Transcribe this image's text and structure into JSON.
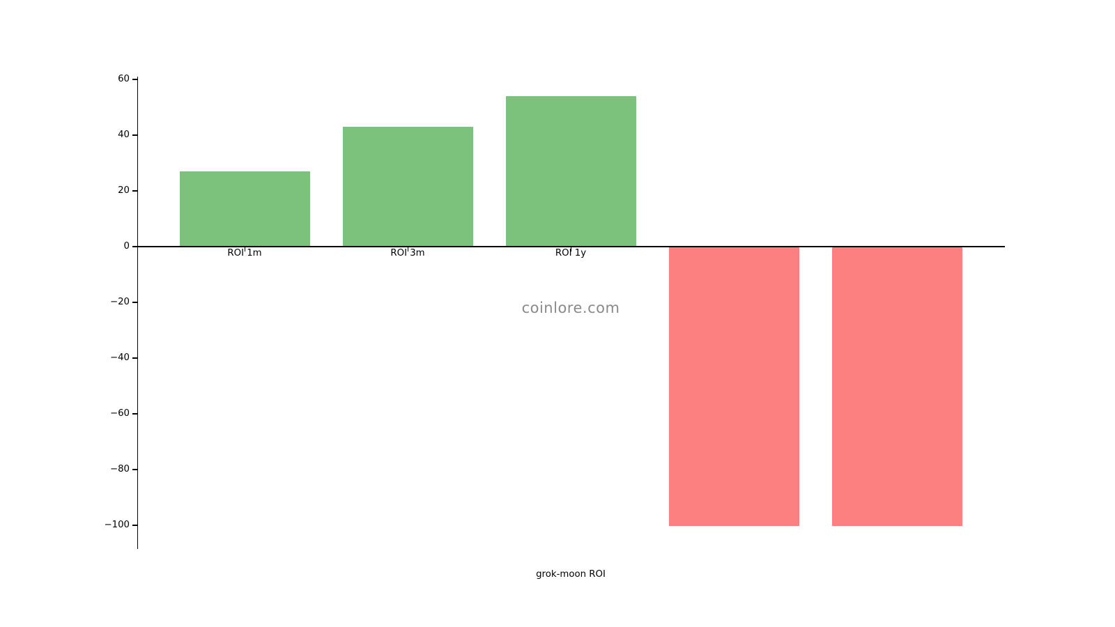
{
  "chart_data": {
    "type": "bar",
    "title": "",
    "xlabel": "grok-moon ROI",
    "ylabel": "",
    "categories": [
      "ROI 1m",
      "ROI 3m",
      "ROI 1y",
      "",
      ""
    ],
    "values": [
      27,
      43,
      54,
      -100,
      -100
    ],
    "yticks": [
      60,
      40,
      20,
      0,
      -20,
      -40,
      -60,
      -80,
      -100
    ],
    "ytick_labels": [
      "60",
      "40",
      "20",
      "0",
      "−20",
      "−40",
      "−60",
      "−80",
      "−100"
    ],
    "ylim": [
      -108,
      60.5
    ],
    "grid": false,
    "legend_position": "none",
    "positive_color": "#7CC27C",
    "negative_color": "#FC8080",
    "axis_color": "#000000",
    "watermark_color": "#8a8a8a",
    "annotations": [
      "coinlore.com"
    ]
  }
}
